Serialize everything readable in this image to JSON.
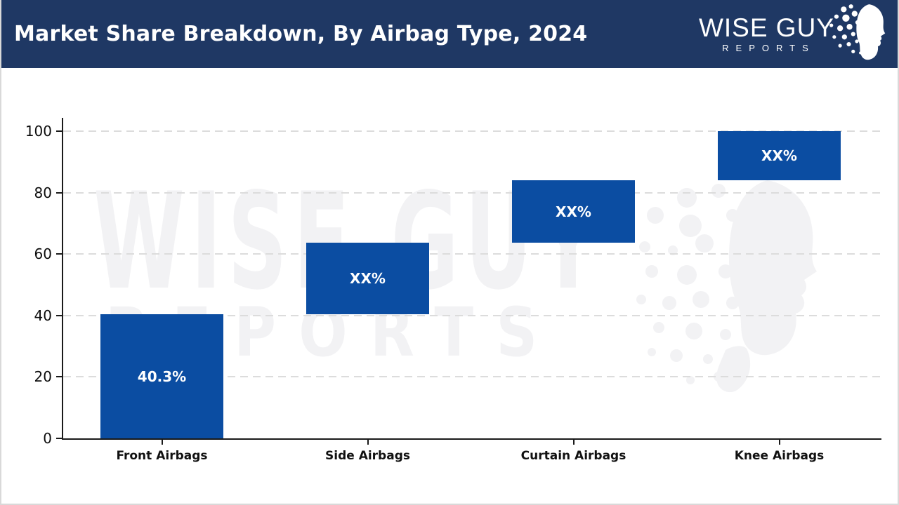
{
  "header": {
    "title": "Market Share Breakdown, By Airbag Type, 2024",
    "logo": {
      "line1": "WISE GUY",
      "line2": "REPORTS"
    }
  },
  "watermark": {
    "line1": "WISE GUY",
    "line2": "REPORTS"
  },
  "chart_data": {
    "type": "bar",
    "subtype": "waterfall",
    "title": "Market Share Breakdown, By Airbag Type, 2024",
    "xlabel": "",
    "ylabel": "",
    "categories": [
      "Front Airbags",
      "Side Airbags",
      "Curtain Airbags",
      "Knee Airbags"
    ],
    "segments": [
      {
        "category": "Front Airbags",
        "start": 0,
        "end": 40.3,
        "label": "40.3%"
      },
      {
        "category": "Side Airbags",
        "start": 40.3,
        "end": 63.7,
        "label": "XX%"
      },
      {
        "category": "Curtain Airbags",
        "start": 63.7,
        "end": 84.0,
        "label": "XX%"
      },
      {
        "category": "Knee Airbags",
        "start": 84.0,
        "end": 100.0,
        "label": "XX%"
      }
    ],
    "yticks": [
      0,
      20,
      40,
      60,
      80,
      100
    ],
    "ylim": [
      0,
      104
    ],
    "grid": "horizontal-dashed",
    "legend": "none",
    "colors": {
      "bar": "#0b4da2",
      "bar_label_text": "#ffffff",
      "axis": "#1a1a1a",
      "grid_line": "#dcdcdc",
      "header_bg": "#1f3864",
      "header_text": "#ffffff",
      "watermark": "#f2f2f4"
    }
  }
}
